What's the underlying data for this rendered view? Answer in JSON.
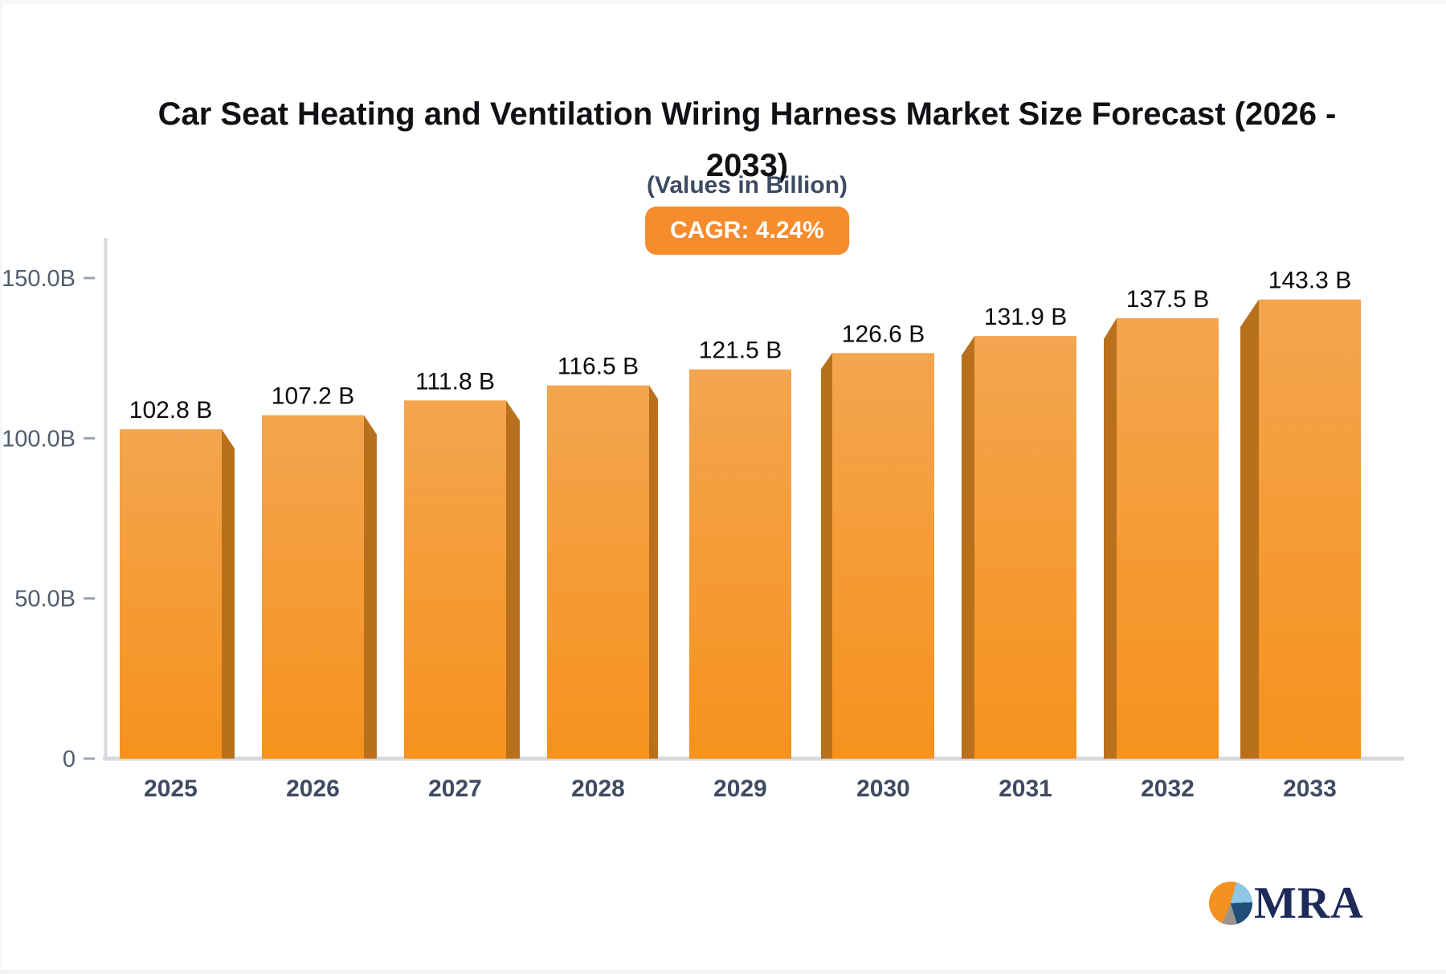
{
  "header": {
    "title": "Car Seat Heating and Ventilation Wiring Harness Market Size Forecast (2026 - 2033)",
    "subtitle": "(Values in Billion)",
    "cagr_badge": "CAGR: 4.24%"
  },
  "chart_data": {
    "type": "bar",
    "title": "Car Seat Heating and Ventilation Wiring Harness Market Size Forecast (2026 - 2033)",
    "subtitle": "(Values in Billion)",
    "annotation": "CAGR: 4.24%",
    "categories": [
      "2025",
      "2026",
      "2027",
      "2028",
      "2029",
      "2030",
      "2031",
      "2032",
      "2033"
    ],
    "values": [
      102.8,
      107.2,
      111.8,
      116.5,
      121.5,
      126.6,
      131.9,
      137.5,
      143.3
    ],
    "bar_labels": [
      "102.8 B",
      "107.2 B",
      "111.8 B",
      "116.5 B",
      "121.5 B",
      "126.6 B",
      "131.9 B",
      "137.5 B",
      "143.3 B"
    ],
    "xlabel": "",
    "ylabel": "",
    "ylim": [
      0,
      150
    ],
    "yticks": [
      {
        "value": 150,
        "label": "150.0B"
      },
      {
        "value": 100,
        "label": "100.0B"
      },
      {
        "value": 50,
        "label": "50.0B"
      },
      {
        "value": 0,
        "label": "0"
      }
    ],
    "grid": false,
    "legend": null,
    "style": "3d-perspective-columns"
  },
  "colors": {
    "bar_face_top": "#f4a54f",
    "bar_face_bottom": "#f6921d",
    "bar_side": "#b9701c",
    "badge_bg": "#f68c2c",
    "badge_text": "#ffffff",
    "title_text": "#0f1115",
    "subtitle_text": "#3d4b63",
    "axis_line": "#d8dadf",
    "tick_dash": "#9aa3b0",
    "ytick_label": "#515d6e",
    "xtick_label": "#3f4b63",
    "value_label": "#0b0b0b",
    "logo_navy": "#1e2a5a",
    "logo_orange": "#f59120",
    "logo_blue": "#8ec6e6",
    "logo_gray": "#999490"
  },
  "logo": {
    "text": "MRA",
    "icon": "pie-chart"
  }
}
